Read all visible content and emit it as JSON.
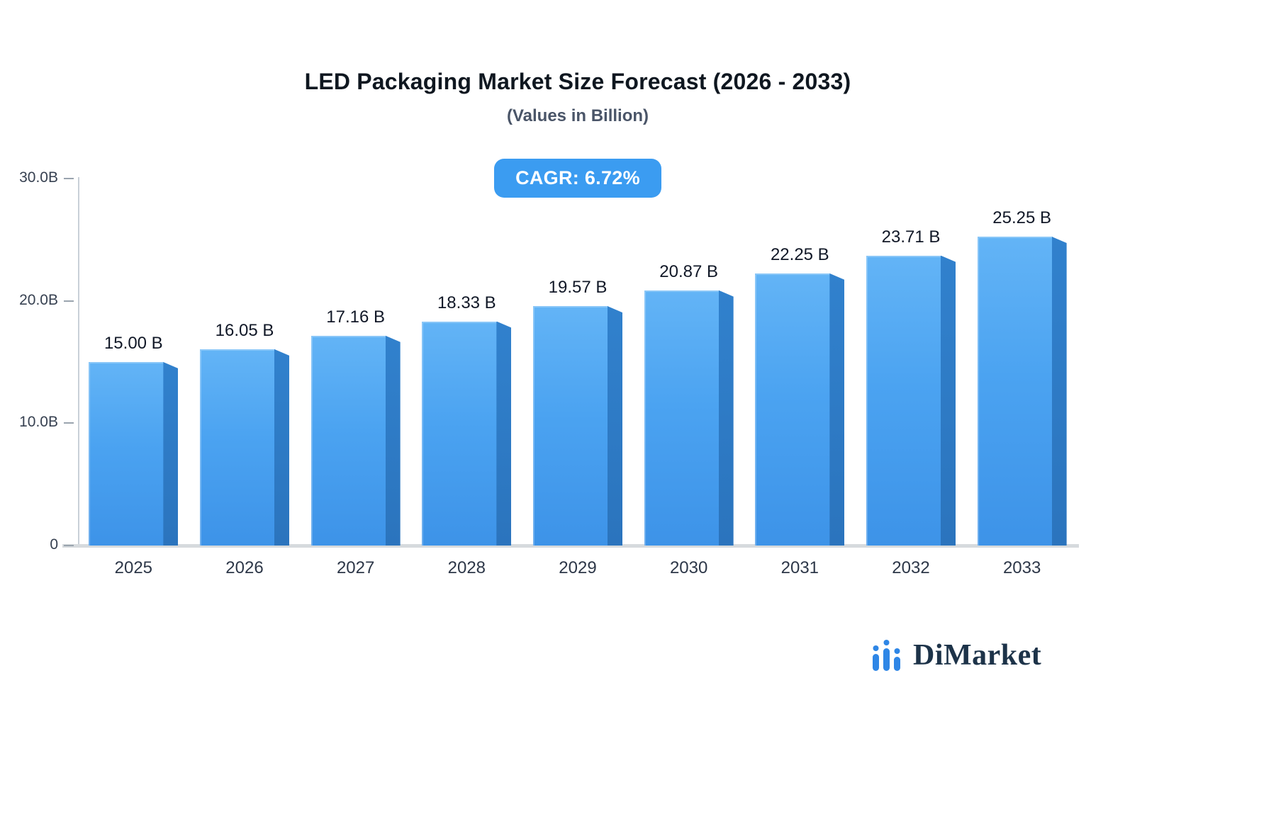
{
  "header": {
    "title": "LED Packaging Market Size Forecast (2026 - 2033)",
    "subtitle": "(Values in Billion)"
  },
  "badge": {
    "label": "CAGR: 6.72%",
    "bg_color": "#3b9cf1",
    "text_color": "#ffffff"
  },
  "logo": {
    "text": "DiMarket",
    "icon": "bar-chart-icon",
    "icon_color": "#2e86e6",
    "text_color": "#1d3349"
  },
  "chart_data": {
    "type": "bar",
    "title": "LED Packaging Market Size Forecast (2026 - 2033)",
    "subtitle": "(Values in Billion)",
    "categories": [
      "2025",
      "2026",
      "2027",
      "2028",
      "2029",
      "2030",
      "2031",
      "2032",
      "2033"
    ],
    "values": [
      15.0,
      16.05,
      17.16,
      18.33,
      19.57,
      20.87,
      22.25,
      23.71,
      25.25
    ],
    "value_labels": [
      "15.00 B",
      "16.05 B",
      "17.16 B",
      "18.33 B",
      "19.57 B",
      "20.87 B",
      "22.25 B",
      "23.71 B",
      "25.25 B"
    ],
    "xlabel": "",
    "ylabel": "",
    "ylim": [
      0,
      30
    ],
    "yticks": {
      "values": [
        0,
        10,
        20,
        30
      ],
      "labels": [
        "0",
        "10.0B",
        "20.0B",
        "30.0B"
      ]
    },
    "grid": false,
    "legend": false,
    "bar_color_front": "#4ba3f1",
    "bar_color_side": "#2d7ac4",
    "annotations": [
      "CAGR: 6.72%"
    ]
  }
}
